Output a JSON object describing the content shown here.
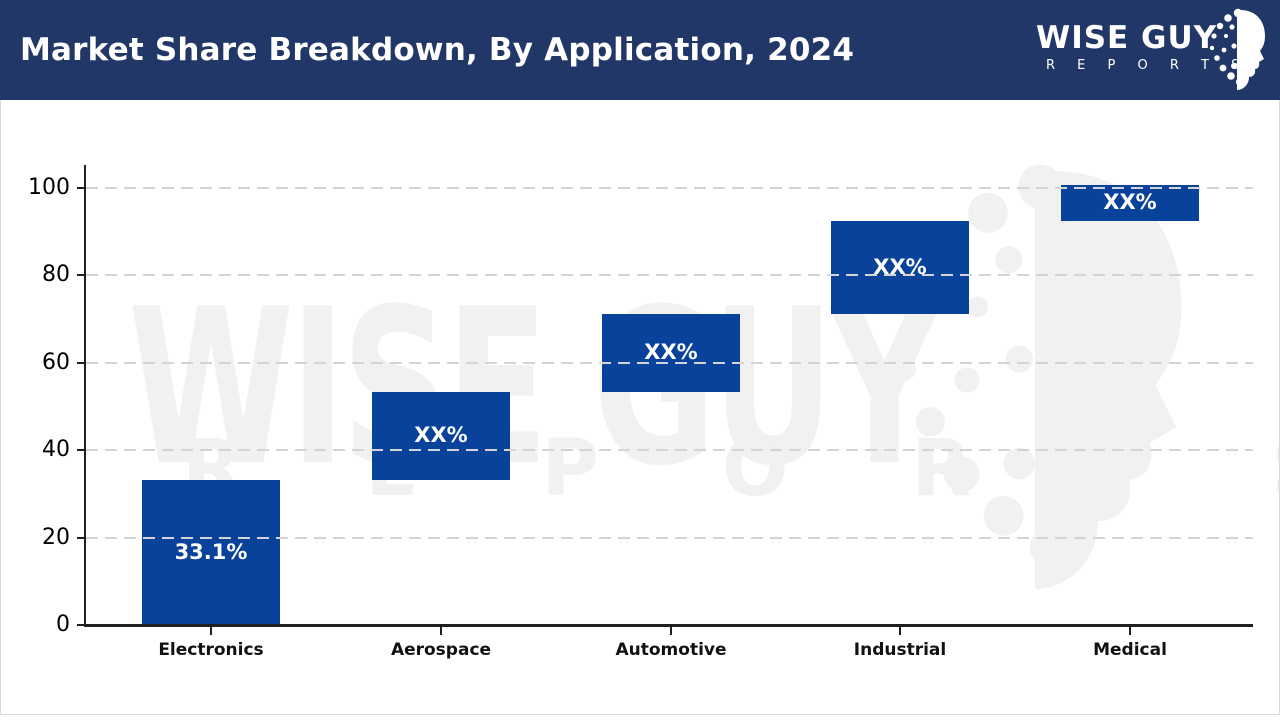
{
  "header": {
    "title": "Market Share Breakdown, By Application, 2024",
    "bg_color": "#213767",
    "logo": {
      "line1": "WISE GUY",
      "line2": "R E P O R T S",
      "head_icon": "dotted-face-profile"
    }
  },
  "watermark": {
    "line1": "WISE GUY",
    "line2": "R E P O R T S",
    "head_icon": "dotted-face-profile"
  },
  "chart_data": {
    "type": "bar",
    "subtype": "waterfall",
    "title": "Market Share Breakdown, By Application, 2024",
    "categories": [
      "Electronics",
      "Aerospace",
      "Automotive",
      "Industrial",
      "Medical"
    ],
    "segments": [
      {
        "category": "Electronics",
        "start": 0,
        "end": 33.1,
        "label": "33.1%"
      },
      {
        "category": "Aerospace",
        "start": 33.1,
        "end": 53.2,
        "label": "XX%"
      },
      {
        "category": "Automotive",
        "start": 53.2,
        "end": 71.1,
        "label": "XX%"
      },
      {
        "category": "Industrial",
        "start": 71.1,
        "end": 92.3,
        "label": "XX%"
      },
      {
        "category": "Medical",
        "start": 92.3,
        "end": 100.5,
        "label": "XX%"
      }
    ],
    "yticks": [
      0,
      20,
      40,
      60,
      80,
      100
    ],
    "ylim": [
      0,
      105
    ],
    "xlabel": "",
    "ylabel": "",
    "grid": "horizontal-dashed",
    "legend": "none",
    "bar_color": "#09429b",
    "value_label_color": "#ffffff",
    "masked_values": true
  },
  "colors": {
    "header_navy": "#213767",
    "bar_blue": "#09429b",
    "grid_gray": "#d4d4d4",
    "axis_black": "#1f1f1f",
    "watermark_gray": "#f1f1f2",
    "frame_gray": "#d9d9d9"
  }
}
